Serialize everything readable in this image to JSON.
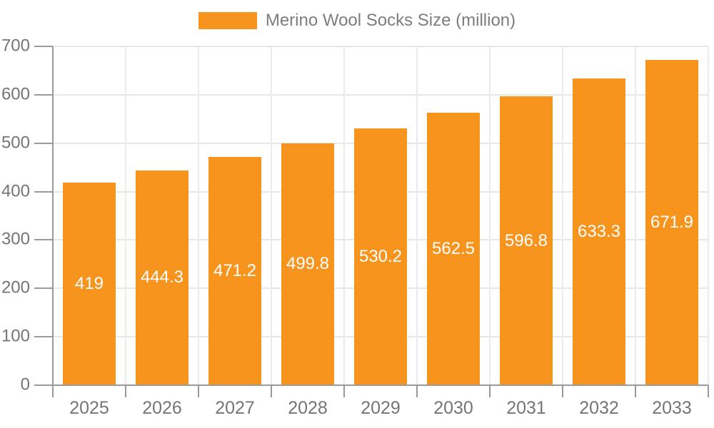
{
  "legend": {
    "label": "Merino Wool Socks Size (million)"
  },
  "colors": {
    "bar": "#F7941E",
    "bar_label": "#FFFFFF",
    "grid_h": "#E7E7E7",
    "grid_v": "#EBEBEB",
    "axis": "#9A9A9A",
    "tick_label": "#757575",
    "legend_text": "#7D7D7D",
    "background": "#FFFFFF"
  },
  "chart_data": {
    "type": "bar",
    "title": "",
    "series_name": "Merino Wool Socks Size (million)",
    "categories": [
      "2025",
      "2026",
      "2027",
      "2028",
      "2029",
      "2030",
      "2031",
      "2032",
      "2033"
    ],
    "values": [
      419,
      444.3,
      471.2,
      499.8,
      530.2,
      562.5,
      596.8,
      633.3,
      671.9
    ],
    "value_labels": [
      "419",
      "444.3",
      "471.2",
      "499.8",
      "530.2",
      "562.5",
      "596.8",
      "633.3",
      "671.9"
    ],
    "xlabel": "",
    "ylabel": "",
    "ylim": [
      0,
      700
    ],
    "yticks": [
      0,
      100,
      200,
      300,
      400,
      500,
      600,
      700
    ],
    "grid": true,
    "legend_position": "top",
    "bar_label_position": "inside-center"
  }
}
